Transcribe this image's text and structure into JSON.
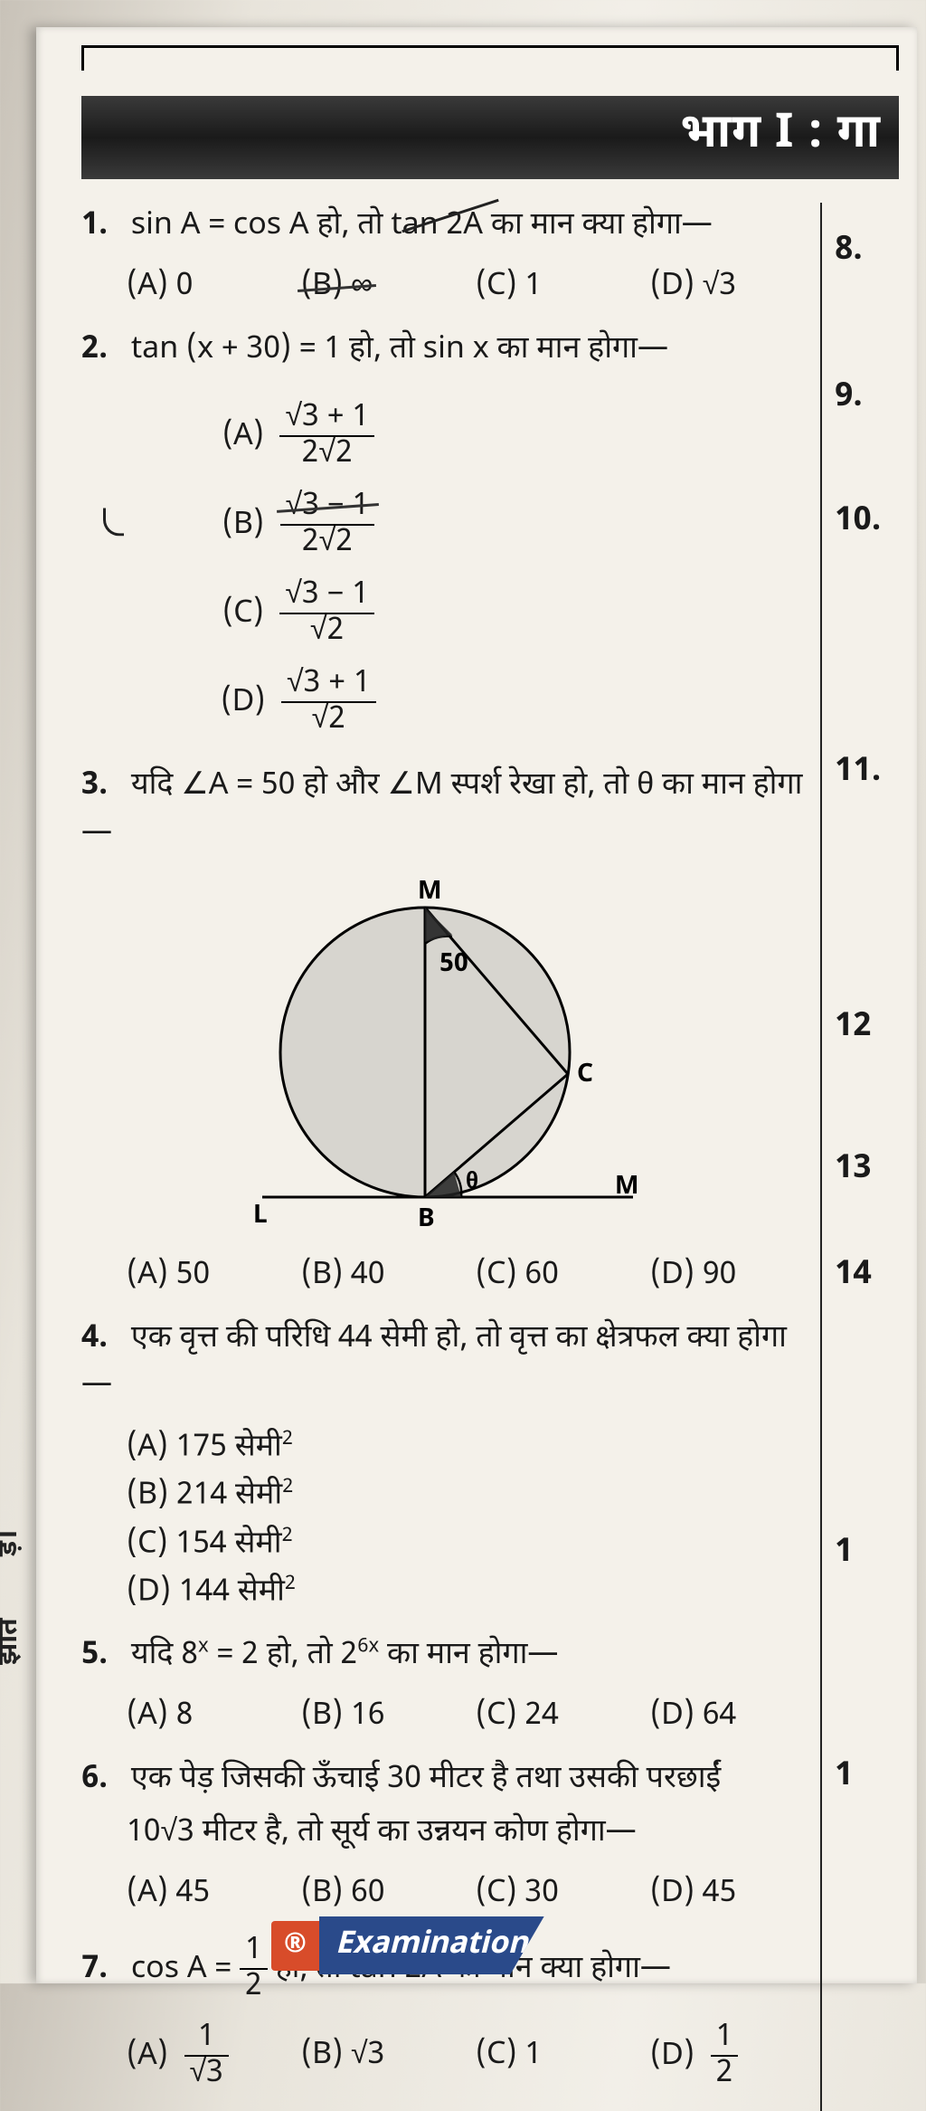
{
  "header": "भाग I : गा",
  "side": {
    "items": [
      "8.",
      "9.",
      "10.",
      "11.",
      "12",
      "13",
      "14",
      "1",
      "1"
    ]
  },
  "side_gap": [
    30,
    115,
    90,
    230,
    235,
    110,
    70,
    260,
    200
  ],
  "q1": {
    "num": "1.",
    "text_a": "sin A = cos A हो, तो ",
    "text_strike": "tan 2A",
    "text_b": " का मान क्या होगा—",
    "opts": {
      "A": "0",
      "B": "∞",
      "C": "1",
      "D": "√3"
    },
    "label": {
      "A": "(A)",
      "B": "(B)",
      "C": "(C)",
      "D": "(D)"
    }
  },
  "q2": {
    "num": "2.",
    "text": "tan (x + 30) = 1 हो, तो sin x का मान होगा—",
    "opts": {
      "A": {
        "num": "√3 + 1",
        "den": "2√2"
      },
      "B": {
        "num": "√3 − 1",
        "den": "2√2"
      },
      "C": {
        "num": "√3 − 1",
        "den": "√2"
      },
      "D": {
        "num": "√3 + 1",
        "den": "√2"
      }
    },
    "label": {
      "A": "(A)",
      "B": "(B)",
      "C": "(C)",
      "D": "(D)"
    }
  },
  "q3": {
    "num": "3.",
    "text": "यदि ∠A = 50 हो और ∠M स्पर्श रेखा हो, तो θ का मान होगा—",
    "fig": {
      "labels": {
        "M_top": "M",
        "ang50": "50",
        "C": "C",
        "theta": "θ",
        "L": "L",
        "B": "B",
        "M_right": "M"
      },
      "circle_fill": "#d7d5cf",
      "circle_stroke": "#000",
      "line_stroke": "#000"
    },
    "opts": {
      "A": "50",
      "B": "40",
      "C": "60",
      "D": "90"
    },
    "label": {
      "A": "(A)",
      "B": "(B)",
      "C": "(C)",
      "D": "(D)"
    }
  },
  "q4": {
    "num": "4.",
    "text": "एक वृत्त की परिधि 44 सेमी हो, तो वृत्त का क्षेत्रफल क्या होगा—",
    "opts": {
      "A": "175 सेमी",
      "B": "214 सेमी",
      "C": "154 सेमी",
      "D": "144 सेमी"
    },
    "sq": "2",
    "label": {
      "A": "(A)",
      "B": "(B)",
      "C": "(C)",
      "D": "(D)"
    }
  },
  "q5": {
    "num": "5.",
    "text_a": "यदि 8",
    "exp_x": "x",
    "text_b": " = 2 हो, तो 2",
    "exp_6x": "6x",
    "text_c": " का मान होगा—",
    "opts": {
      "A": "8",
      "B": "16",
      "C": "24",
      "D": "64"
    },
    "label": {
      "A": "(A)",
      "B": "(B)",
      "C": "(C)",
      "D": "(D)"
    }
  },
  "q6": {
    "num": "6.",
    "line1": "एक पेड़ जिसकी ऊँचाई 30 मीटर है तथा उसकी परछाईं",
    "line2a": "10√3",
    "line2b": " मीटर है, तो सूर्य का उन्नयन कोण होगा—",
    "opts": {
      "A": "45",
      "B": "60",
      "C": "30",
      "D": "45"
    },
    "label": {
      "A": "(A)",
      "B": "(B)",
      "C": "(C)",
      "D": "(D)"
    }
  },
  "q7": {
    "num": "7.",
    "text_a": "cos A = ",
    "frac": {
      "n": "1",
      "d": "2"
    },
    "text_b": " हो, तो tan 2A का मान क्या होगा—",
    "opts": {
      "A": {
        "type": "frac",
        "n": "1",
        "d": "√3"
      },
      "B": "√3",
      "C": "1",
      "D": {
        "type": "frac",
        "n": "1",
        "d": "2"
      }
    },
    "label": {
      "A": "(A)",
      "B": "(B)",
      "C": "(C)",
      "D": "(D)"
    }
  },
  "left_margin": {
    "a": "ड़े।",
    "b": "झात"
  },
  "footer": {
    "r": "®",
    "e": "Examination"
  }
}
